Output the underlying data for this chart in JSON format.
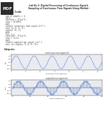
{
  "title_line1": "Lab No 2: Digital Processing of Continuous Signals",
  "title_line2": "Sampling of Continuous Time Signals Using Matlab™",
  "section_source": "Source Code",
  "section_output": "Outputs",
  "code_lines": [
    "clc",
    "num_of_samples = 1;",
    "T=0.1;",
    "interval = (T*pi/T);",
    "step = [0,100];",
    "plot;",
    "xlabel('continuous time signal x(t)');",
    "plot (0, 0, 0, 1);",
    "subplot (0, 2);",
    "hold;",
    "T=5, f_s;",
    "interval = (T*pi/T);",
    "step = (k,n);",
    "plot;",
    "xlabel('sampled time signal x(n)');",
    "axis (of subplot, 0, 0, 0, Ts);"
  ],
  "bg_color": "#ffffff",
  "text_color": "#333333",
  "plot1_title": "continuous time signal x(t)",
  "plot2_title": "sampled time signal x(n)",
  "plot1_ylabel": "x(t)",
  "plot2_ylabel": "x(n)",
  "plot1_xlabel": "continuous time signal x(t)",
  "plot2_xlabel": "discrete samples, n",
  "pdf_box_color": "#2b2b2b",
  "plot1_line_color": "#4477cc",
  "plot2_stem_color": "#6688cc",
  "plot_bg_color": "#e8eaf0",
  "grid_color": "#ffffff",
  "title_color": "#333333"
}
